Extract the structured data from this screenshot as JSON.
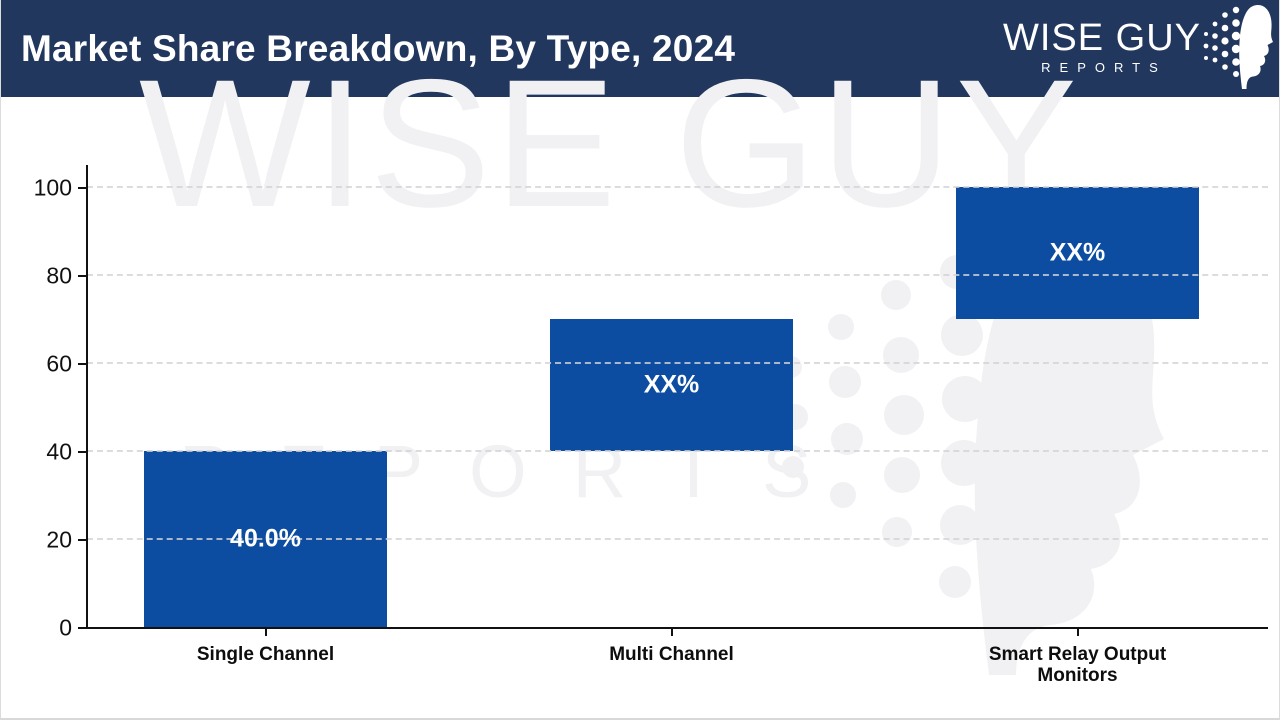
{
  "header": {
    "title": "Market Share Breakdown, By Type, 2024",
    "bg_color": "#21375e",
    "logo": {
      "line1": "WISE GUY",
      "line2": "REPORTS"
    }
  },
  "watermark": {
    "line1": "WISE GUY",
    "line2": "REPORTS"
  },
  "chart_data": {
    "type": "bar",
    "subtype": "stacked-waterfall",
    "title": "Market Share Breakdown, By Type, 2024",
    "categories": [
      "Single Channel",
      "Multi Channel",
      "Smart Relay Output Monitors"
    ],
    "series": [
      {
        "name": "Market Share",
        "bases": [
          0,
          40,
          70
        ],
        "tops": [
          40,
          70,
          100
        ],
        "values": [
          40,
          30,
          30
        ]
      }
    ],
    "bar_labels": [
      "40.0%",
      "XX%",
      "XX%"
    ],
    "bar_color": "#0c4da1",
    "xlabel": "",
    "ylabel": "",
    "ylim": [
      0,
      100
    ],
    "yticks": [
      0,
      20,
      40,
      60,
      80,
      100
    ],
    "grid": "horizontal dashed, drawn above bars",
    "gridline_color": "#d3d3d6",
    "legend": "none"
  }
}
